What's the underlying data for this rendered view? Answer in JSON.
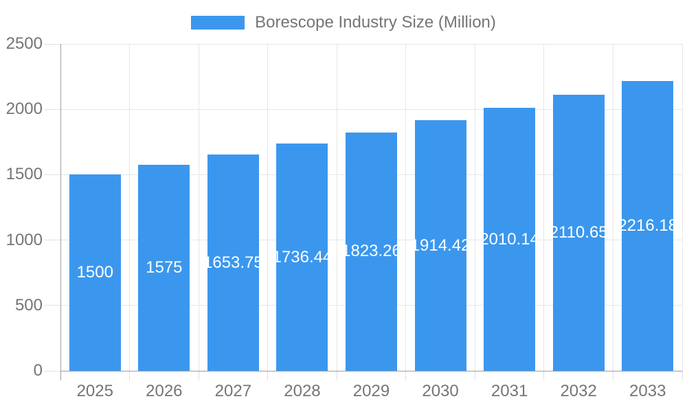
{
  "chart_data": {
    "type": "bar",
    "title": "Borescope Industry Size (Million)",
    "categories": [
      "2025",
      "2026",
      "2027",
      "2028",
      "2029",
      "2030",
      "2031",
      "2032",
      "2033"
    ],
    "values": [
      1500,
      1575,
      1653.75,
      1736.44,
      1823.26,
      1914.42,
      2010.14,
      2110.65,
      2216.18
    ],
    "xlabel": "",
    "ylabel": "",
    "ylim": [
      0,
      2500
    ],
    "y_ticks": [
      0,
      500,
      1000,
      1500,
      2000,
      2500
    ],
    "grid": true,
    "legend_position": "top-center",
    "colors": {
      "bar": "#3b97ee",
      "gridline": "#e6e6e6",
      "tick_mark": "#e0e0e0",
      "axis_line": "#9e9e9e",
      "tick_label": "#757575",
      "value_label": "#ffffff",
      "background": "#ffffff"
    }
  }
}
